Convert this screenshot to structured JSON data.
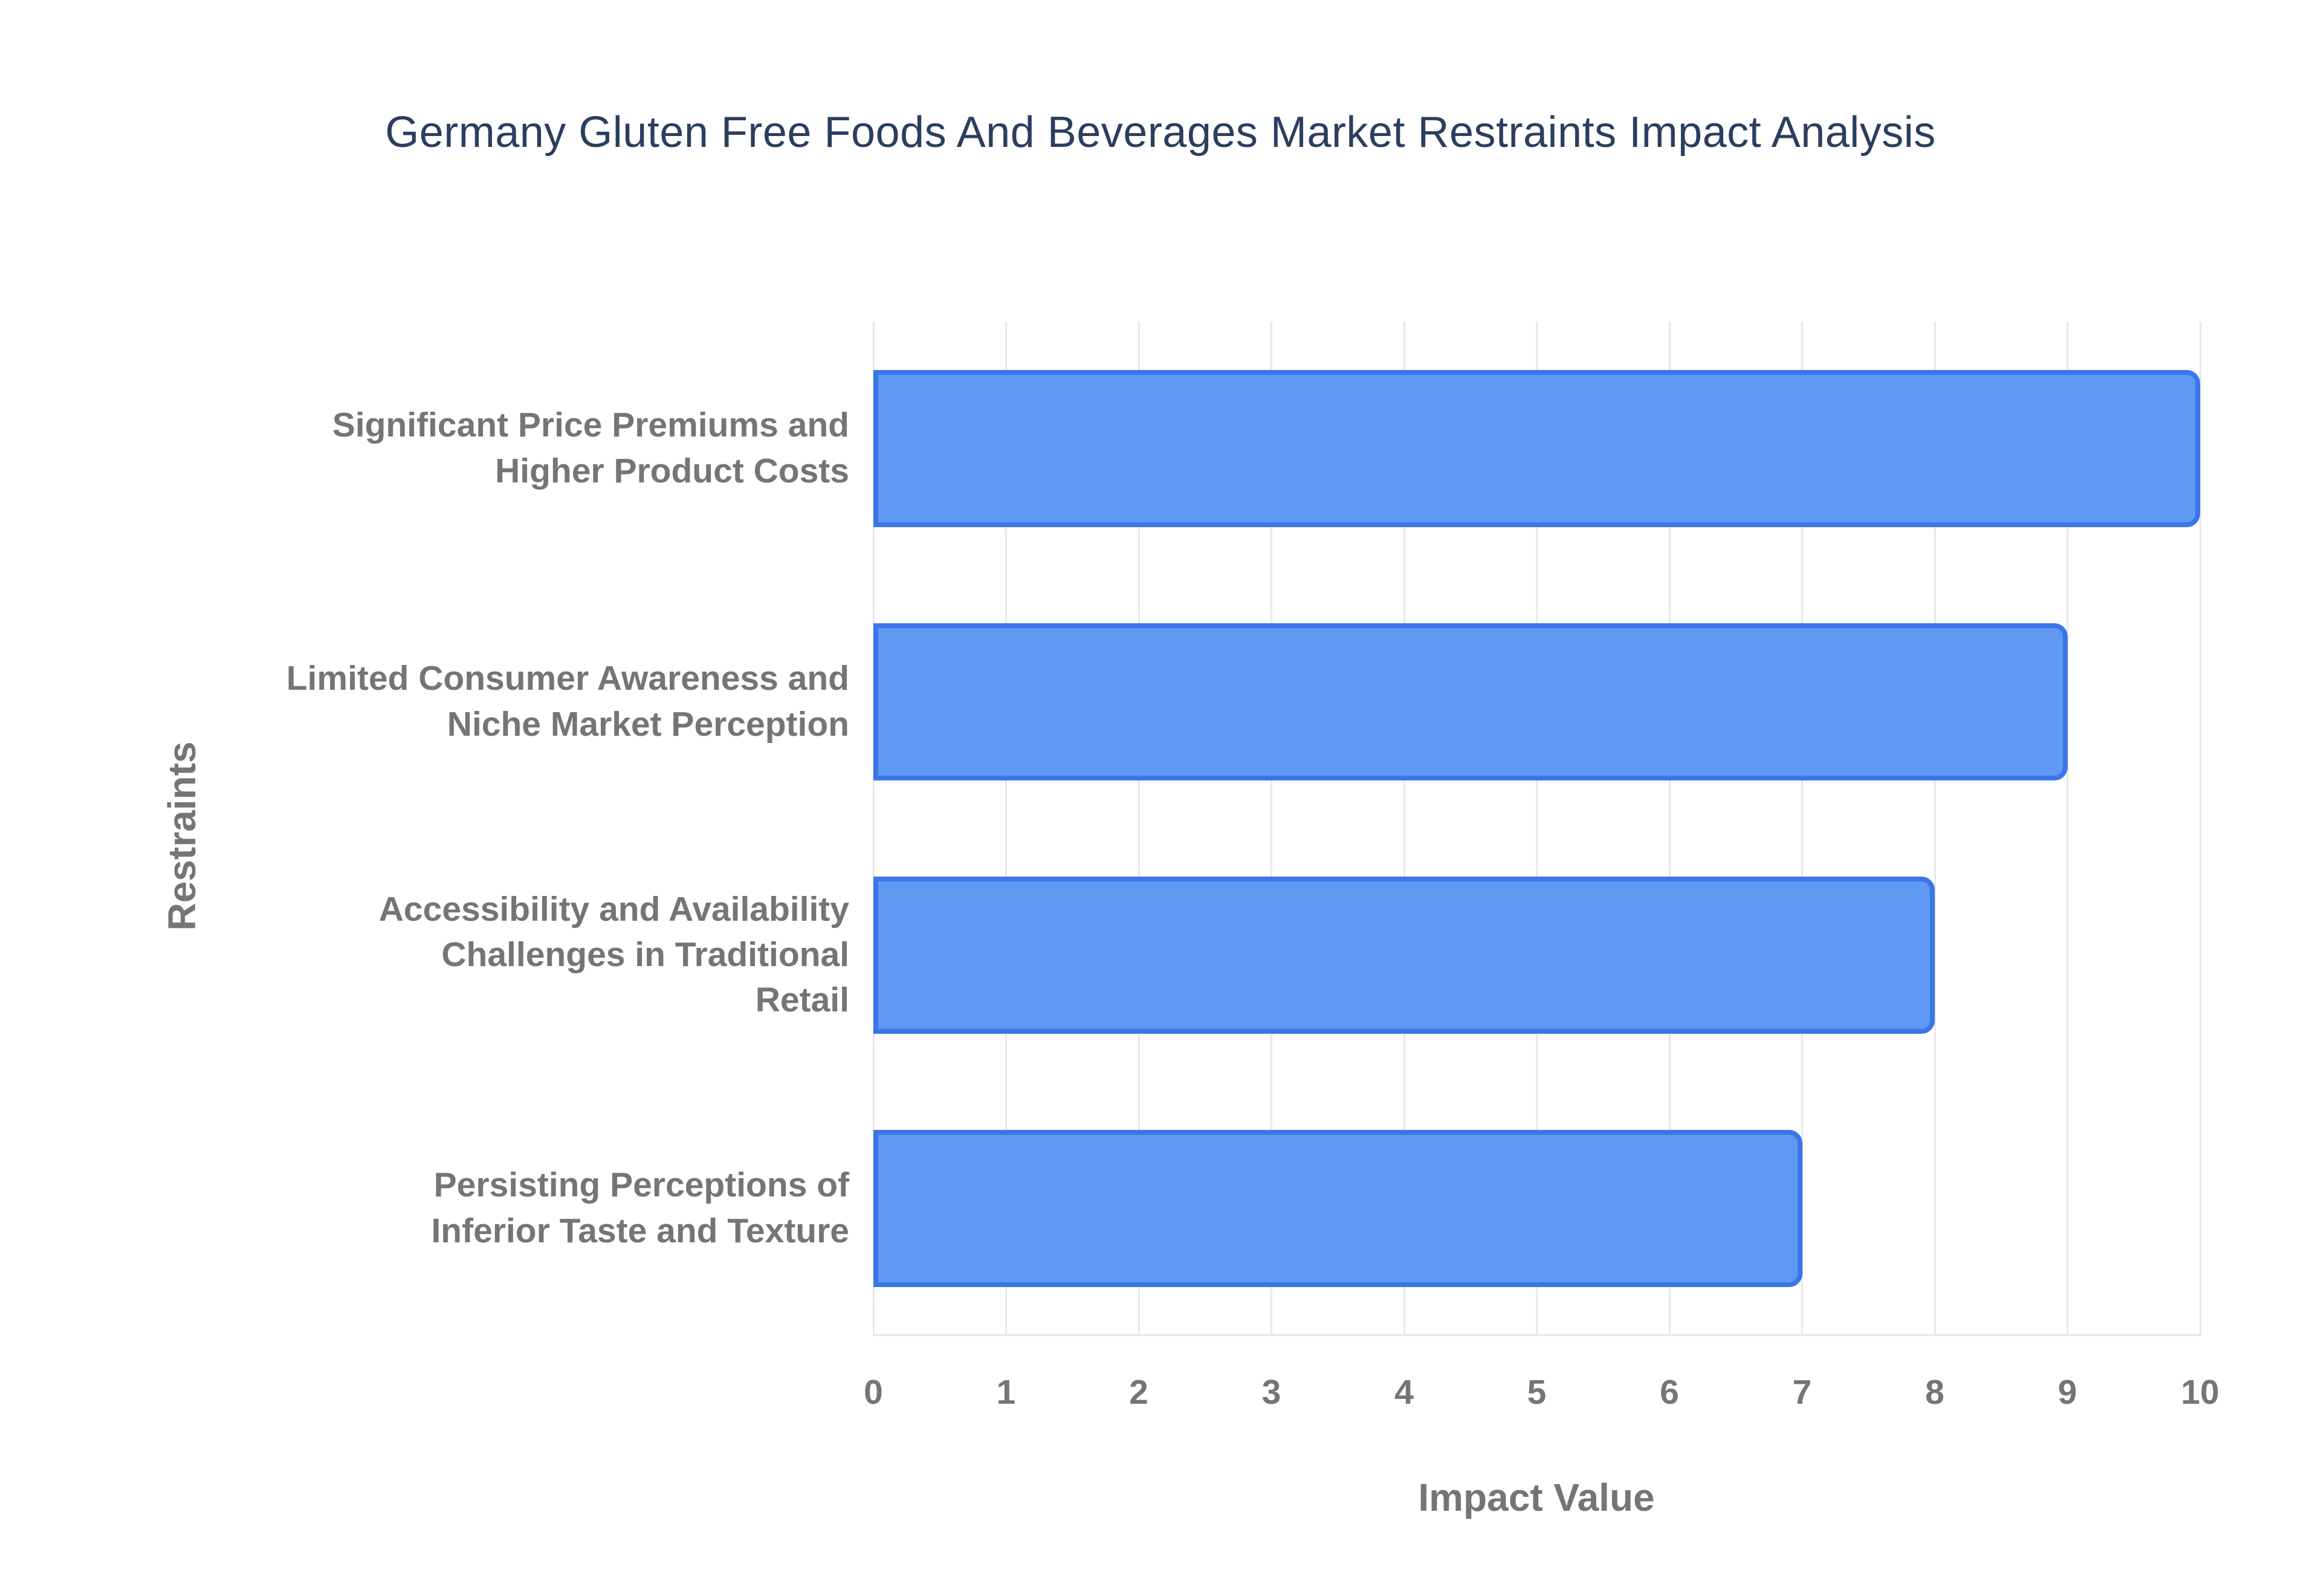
{
  "title": "Germany Gluten Free Foods And Beverages Market Restraints Impact Analysis",
  "chart_data": {
    "type": "bar",
    "orientation": "horizontal",
    "title": "Germany Gluten Free Foods And Beverages Market Restraints Impact Analysis",
    "categories": [
      "Significant Price Premiums and\nHigher Product Costs",
      "Limited Consumer Awareness and\nNiche Market Perception",
      "Accessibility and Availability\nChallenges in Traditional\nRetail",
      "Persisting Perceptions of\nInferior Taste and Texture"
    ],
    "values": [
      10,
      9,
      8,
      7
    ],
    "xlabel": "Impact Value",
    "ylabel": "Restraints",
    "xlim": [
      0,
      10
    ],
    "xticks": [
      0,
      1,
      2,
      3,
      4,
      5,
      6,
      7,
      8,
      9,
      10
    ],
    "grid": "vertical-only",
    "legend": "none",
    "colors": {
      "bar_fill": "#5f99f3",
      "bar_border": "#3b76e9",
      "gridline": "#e8e8e8",
      "axis_text": "#757575",
      "title_text": "#2a3f5f",
      "background": "#ffffff"
    }
  }
}
